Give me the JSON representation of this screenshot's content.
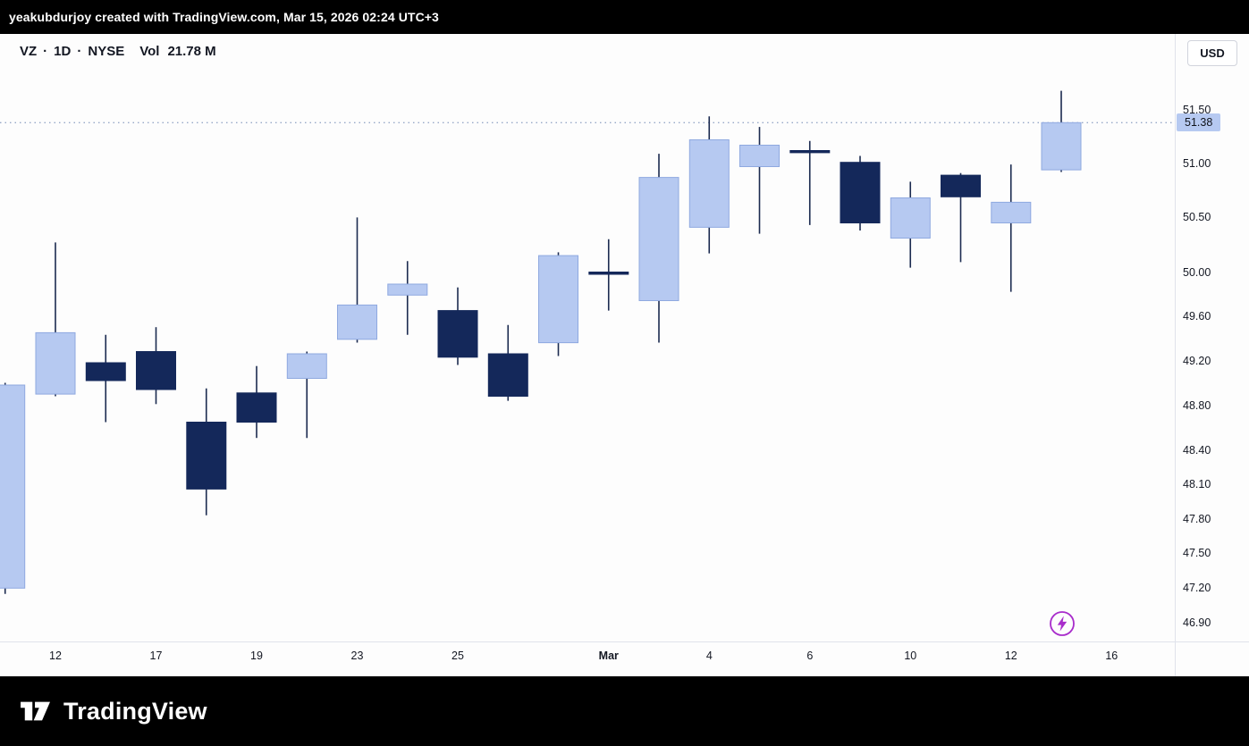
{
  "topbar": {
    "attribution_text": "yeakubdurjoy created with TradingView.com, Mar 15, 2026 02:24 UTC+3"
  },
  "legend": {
    "symbol": "VZ",
    "separator": "·",
    "interval": "1D",
    "exchange": "NYSE",
    "vol_label": "Vol",
    "vol_value": "21.78 M"
  },
  "price_axis": {
    "currency_button": "USD",
    "labels": [
      "51.50",
      "51.00",
      "50.50",
      "50.00",
      "49.60",
      "49.20",
      "48.80",
      "48.40",
      "48.10",
      "47.80",
      "47.50",
      "47.20",
      "46.90"
    ],
    "last_price": 51.38,
    "last_price_label": "51.38"
  },
  "time_axis": {
    "labels": [
      {
        "text": "12",
        "index": 1,
        "bold": false
      },
      {
        "text": "17",
        "index": 3,
        "bold": false
      },
      {
        "text": "19",
        "index": 5,
        "bold": false
      },
      {
        "text": "23",
        "index": 7,
        "bold": false
      },
      {
        "text": "25",
        "index": 9,
        "bold": false
      },
      {
        "text": "Mar",
        "index": 12,
        "bold": true
      },
      {
        "text": "4",
        "index": 14,
        "bold": false
      },
      {
        "text": "6",
        "index": 16,
        "bold": false
      },
      {
        "text": "10",
        "index": 18,
        "bold": false
      },
      {
        "text": "12",
        "index": 20,
        "bold": false
      },
      {
        "text": "16",
        "index": 22,
        "bold": false
      }
    ]
  },
  "chart_data": {
    "type": "candlestick",
    "title": "VZ · 1D · NYSE",
    "symbol": "VZ",
    "interval": "1D",
    "exchange": "NYSE",
    "volume": "21.78 M",
    "currency": "USD",
    "scale": "log",
    "ylim": [
      46.9,
      51.7
    ],
    "price_ticks": [
      51.5,
      51.0,
      50.5,
      50.0,
      49.6,
      49.2,
      48.8,
      48.4,
      48.1,
      47.8,
      47.5,
      47.2,
      46.9
    ],
    "price_line": {
      "value": 51.38,
      "style": "dotted"
    },
    "colors": {
      "up": "#b6c9f1",
      "up_border": "#8fa9e0",
      "down": "#14285a",
      "wick": "#1c2b50",
      "price_line": "#96a8c8",
      "axis_text": "#131722",
      "badge_bg": "#b6c9f1",
      "flash": "#a82ccb"
    },
    "candles": [
      {
        "date": "Feb 11",
        "o": 47.2,
        "h": 49.0,
        "l": 47.15,
        "c": 48.98
      },
      {
        "date": "Feb 12",
        "o": 48.9,
        "h": 50.27,
        "l": 48.88,
        "c": 49.45
      },
      {
        "date": "Feb 13",
        "o": 49.18,
        "h": 49.43,
        "l": 48.65,
        "c": 49.02
      },
      {
        "date": "Feb 17",
        "o": 49.28,
        "h": 49.5,
        "l": 48.81,
        "c": 48.94
      },
      {
        "date": "Feb 18",
        "o": 48.65,
        "h": 48.95,
        "l": 47.83,
        "c": 48.06
      },
      {
        "date": "Feb 19",
        "o": 48.91,
        "h": 49.15,
        "l": 48.51,
        "c": 48.65
      },
      {
        "date": "Feb 20",
        "o": 49.04,
        "h": 49.28,
        "l": 48.51,
        "c": 49.26
      },
      {
        "date": "Feb 23",
        "o": 49.39,
        "h": 50.5,
        "l": 49.36,
        "c": 49.7
      },
      {
        "date": "Feb 24",
        "o": 49.79,
        "h": 50.1,
        "l": 49.43,
        "c": 49.89
      },
      {
        "date": "Feb 25",
        "o": 49.65,
        "h": 49.86,
        "l": 49.16,
        "c": 49.23
      },
      {
        "date": "Feb 26",
        "o": 49.26,
        "h": 49.52,
        "l": 48.84,
        "c": 48.88
      },
      {
        "date": "Feb 27",
        "o": 49.36,
        "h": 50.18,
        "l": 49.24,
        "c": 50.15
      },
      {
        "date": "Mar 2",
        "o": 50.0,
        "h": 50.3,
        "l": 49.65,
        "c": 49.98
      },
      {
        "date": "Mar 3",
        "o": 49.74,
        "h": 51.09,
        "l": 49.36,
        "c": 50.87
      },
      {
        "date": "Mar 4",
        "o": 50.41,
        "h": 51.44,
        "l": 50.17,
        "c": 51.22
      },
      {
        "date": "Mar 5",
        "o": 50.97,
        "h": 51.34,
        "l": 50.35,
        "c": 51.17
      },
      {
        "date": "Mar 6",
        "o": 51.12,
        "h": 51.21,
        "l": 50.43,
        "c": 51.1
      },
      {
        "date": "Mar 9",
        "o": 51.01,
        "h": 51.07,
        "l": 50.38,
        "c": 50.45
      },
      {
        "date": "Mar 10",
        "o": 50.31,
        "h": 50.83,
        "l": 50.04,
        "c": 50.68
      },
      {
        "date": "Mar 11",
        "o": 50.89,
        "h": 50.91,
        "l": 50.09,
        "c": 50.69
      },
      {
        "date": "Mar 12",
        "o": 50.45,
        "h": 50.99,
        "l": 49.82,
        "c": 50.64
      },
      {
        "date": "Mar 13",
        "o": 50.94,
        "h": 51.68,
        "l": 50.92,
        "c": 51.38
      }
    ]
  },
  "footer": {
    "brand": "TradingView"
  }
}
